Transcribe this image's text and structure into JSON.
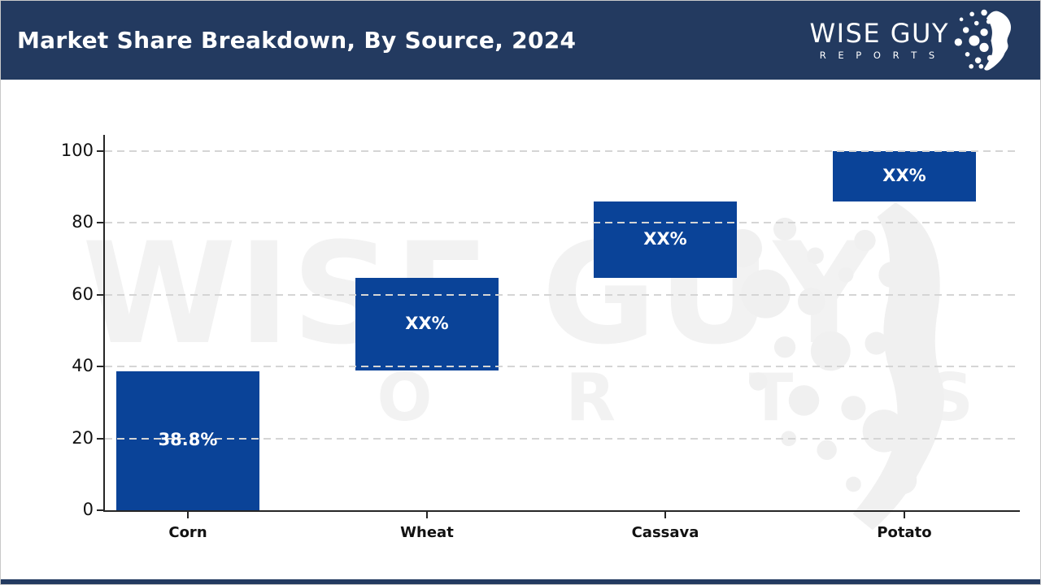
{
  "header": {
    "title": "Market Share Breakdown, By Source, 2024",
    "brand_line1": "WISE GUY",
    "brand_line2": "R E P O R T S",
    "bg_color": "#233a60"
  },
  "watermark": {
    "line1": "WISE GUY",
    "line2": "P O R T S"
  },
  "chart_data": {
    "type": "bar",
    "subtype": "waterfall",
    "title": "Market Share Breakdown, By Source, 2024",
    "xlabel": "",
    "ylabel": "",
    "ylim": [
      0,
      100
    ],
    "yticks": [
      0,
      20,
      40,
      60,
      80,
      100
    ],
    "grid": {
      "axis": "y",
      "style": "dashed",
      "drawn_over_bars": true
    },
    "legend": "none",
    "bar_color": "#0a4398",
    "label_color": "#ffffff",
    "categories": [
      "Corn",
      "Wheat",
      "Cassava",
      "Potato"
    ],
    "segments": [
      {
        "category": "Corn",
        "start": 0,
        "end": 38.8,
        "label": "38.8%"
      },
      {
        "category": "Wheat",
        "start": 38.8,
        "end": 64.6,
        "label": "XX%"
      },
      {
        "category": "Cassava",
        "start": 64.6,
        "end": 86.0,
        "label": "XX%"
      },
      {
        "category": "Potato",
        "start": 86.0,
        "end": 100.0,
        "label": "XX%"
      }
    ]
  }
}
